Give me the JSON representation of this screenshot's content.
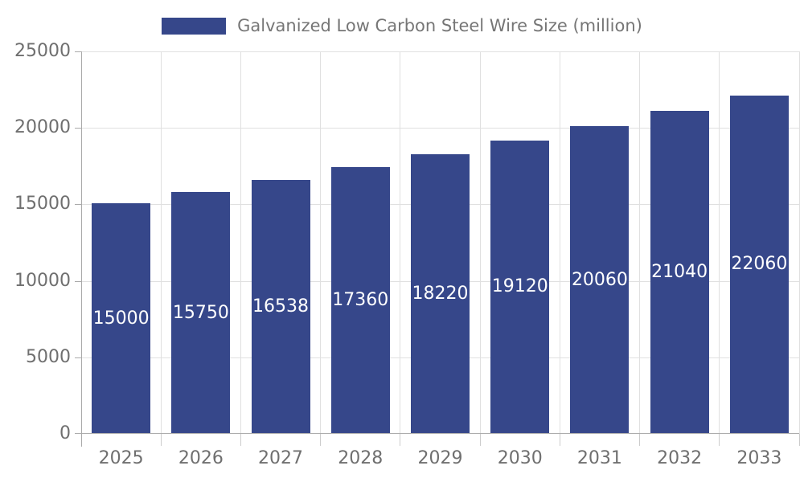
{
  "legend": {
    "label": "Galvanized Low Carbon Steel Wire Size (million)"
  },
  "chart_data": {
    "type": "bar",
    "title": "Galvanized Low Carbon Steel Wire Size (million)",
    "series_name": "Galvanized Low Carbon Steel Wire Size (million)",
    "categories": [
      "2025",
      "2026",
      "2027",
      "2028",
      "2029",
      "2030",
      "2031",
      "2032",
      "2033"
    ],
    "values": [
      15000,
      15750,
      16538,
      17360,
      18220,
      19120,
      20060,
      21040,
      22060
    ],
    "value_labels": [
      "15000",
      "15750",
      "16538",
      "17360",
      "18220",
      "19120",
      "20060",
      "21040",
      "22060"
    ],
    "xlabel": "",
    "ylabel": "",
    "ylim": [
      0,
      25000
    ],
    "ytick_interval": 5000,
    "ytick_labels": [
      "0",
      "5000",
      "10000",
      "15000",
      "20000",
      "25000"
    ],
    "grid": true,
    "legend_position": "top-center",
    "bar_color": "#36478A",
    "value_label_color": "#FFFFFF",
    "colors": {
      "gridline": "#E0E0E0",
      "axis_line": "#AAAAAA",
      "x_tick": "#CCCCCC",
      "axis_label_text": "#6F6F6F",
      "legend_text": "#767676",
      "background": "#FFFFFF"
    }
  }
}
